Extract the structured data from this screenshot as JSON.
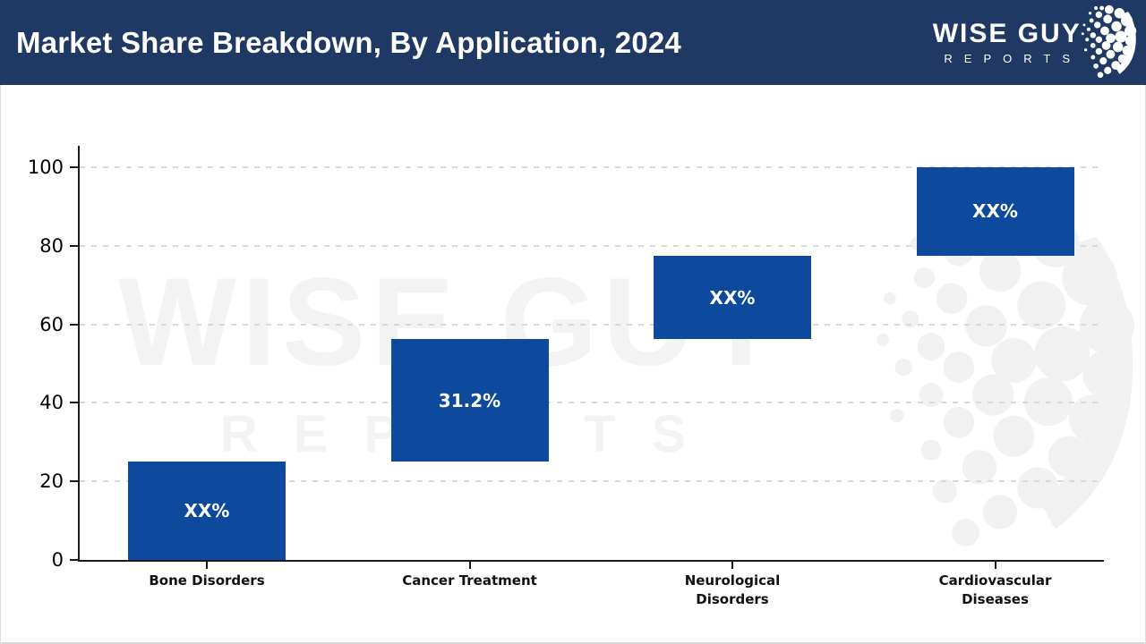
{
  "header": {
    "title": "Market Share Breakdown, By Application, 2024",
    "logo": {
      "line1": "WISE GUY",
      "line2": "REPORTS",
      "icon": "dotted-face-profile"
    },
    "bg_color": "#203864"
  },
  "watermark": {
    "line1": "WISE GUY",
    "line2": "REPORTS",
    "icon": "dotted-face-profile"
  },
  "chart_data": {
    "type": "bar",
    "subtype": "floating-waterfall",
    "title": "Market Share Breakdown, By Application, 2024",
    "categories": [
      "Bone Disorders",
      "Cancer Treatment",
      "Neurological Disorders",
      "Cardiovascular Diseases"
    ],
    "segments": [
      {
        "category": "Bone Disorders",
        "start": 0,
        "end": 25,
        "label": "XX%"
      },
      {
        "category": "Cancer Treatment",
        "start": 25,
        "end": 56.2,
        "label": "31.2%"
      },
      {
        "category": "Neurological Disorders",
        "start": 56.2,
        "end": 77.5,
        "label": "XX%"
      },
      {
        "category": "Cardiovascular Diseases",
        "start": 77.5,
        "end": 100,
        "label": "XX%"
      }
    ],
    "ylim": [
      0,
      100
    ],
    "yticks": [
      0,
      20,
      40,
      60,
      80,
      100
    ],
    "grid": "horizontal-dashed",
    "legend": "none",
    "bar_color": "#0d4a9e",
    "bar_label_color": "#ffffff",
    "axis_color": "#1a1a1a",
    "gridline_color": "#d9d9d9"
  }
}
